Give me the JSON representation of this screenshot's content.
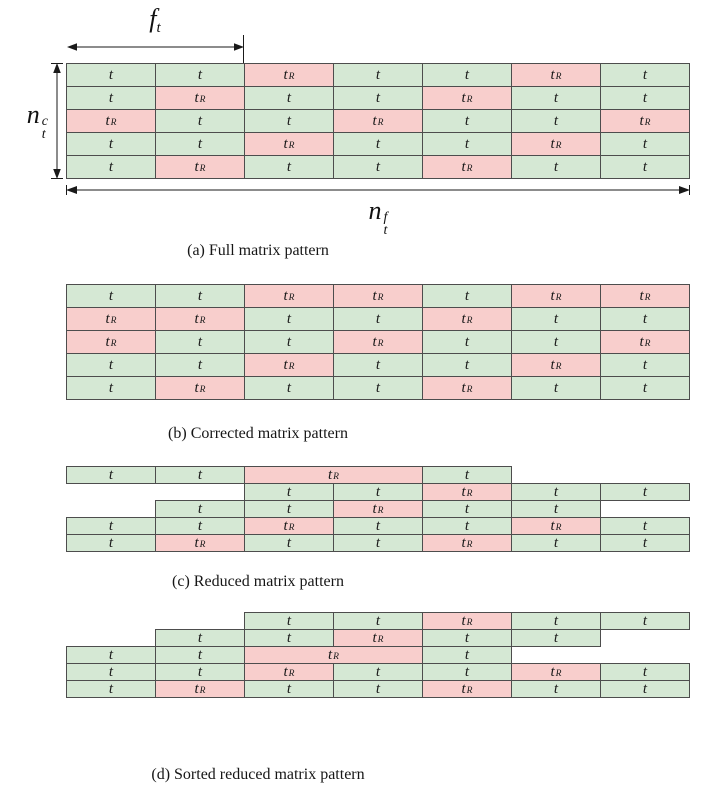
{
  "colors": {
    "cell_green": "#d5e8d4",
    "cell_pink": "#f8cecc",
    "cell_border": "#4d4d4d",
    "ink": "#1a1a1a"
  },
  "annotations": {
    "f": {
      "base": "f",
      "sub": "t"
    },
    "nc": {
      "base": "n",
      "sup": "c",
      "sub": "t"
    },
    "nf": {
      "base": "n",
      "sup": "f",
      "sub": "t"
    }
  },
  "cell_labels": {
    "normal": {
      "base": "t",
      "sub": ""
    },
    "redundant": {
      "base": "t",
      "sub": "R"
    }
  },
  "figures": [
    {
      "key": "a",
      "caption": "(a) Full matrix pattern",
      "grid_cols": 7,
      "rows": [
        {
          "start": 1,
          "cells": [
            "g",
            "g",
            "p",
            "g",
            "g",
            "p",
            "g"
          ]
        },
        {
          "start": 1,
          "cells": [
            "g",
            "p",
            "g",
            "g",
            "p",
            "g",
            "g"
          ]
        },
        {
          "start": 1,
          "cells": [
            "p",
            "g",
            "g",
            "p",
            "g",
            "g",
            "p"
          ]
        },
        {
          "start": 1,
          "cells": [
            "g",
            "g",
            "p",
            "g",
            "g",
            "p",
            "g"
          ]
        },
        {
          "start": 1,
          "cells": [
            "g",
            "p",
            "g",
            "g",
            "p",
            "g",
            "g"
          ]
        }
      ]
    },
    {
      "key": "b",
      "caption": "(b) Corrected matrix pattern",
      "grid_cols": 7,
      "rows": [
        {
          "start": 1,
          "cells": [
            "g",
            "g",
            "p",
            "p",
            "g",
            "p",
            "p"
          ]
        },
        {
          "start": 1,
          "cells": [
            "p",
            "p",
            "g",
            "g",
            "p",
            "g",
            "g"
          ]
        },
        {
          "start": 1,
          "cells": [
            "p",
            "g",
            "g",
            "p",
            "g",
            "g",
            "p"
          ]
        },
        {
          "start": 1,
          "cells": [
            "g",
            "g",
            "p",
            "g",
            "g",
            "p",
            "g"
          ]
        },
        {
          "start": 1,
          "cells": [
            "g",
            "p",
            "g",
            "g",
            "p",
            "g",
            "g"
          ]
        }
      ]
    },
    {
      "key": "c",
      "caption": "(c) Reduced matrix pattern",
      "grid_cols": 7,
      "rows": [
        {
          "start": 1,
          "cells": [
            "g",
            "g",
            "p2",
            "g"
          ]
        },
        {
          "start": 3,
          "cells": [
            "g",
            "g",
            "p",
            "g",
            "g"
          ]
        },
        {
          "start": 2,
          "cells": [
            "g",
            "g",
            "p",
            "g",
            "g"
          ]
        },
        {
          "start": 1,
          "cells": [
            "g",
            "g",
            "p",
            "g",
            "g",
            "p",
            "g"
          ]
        },
        {
          "start": 1,
          "cells": [
            "g",
            "p",
            "g",
            "g",
            "p",
            "g",
            "g"
          ]
        }
      ]
    },
    {
      "key": "d",
      "caption": "(d) Sorted reduced matrix pattern",
      "grid_cols": 7,
      "rows": [
        {
          "start": 3,
          "cells": [
            "g",
            "g",
            "p",
            "g",
            "g"
          ]
        },
        {
          "start": 2,
          "cells": [
            "g",
            "g",
            "p",
            "g",
            "g"
          ]
        },
        {
          "start": 1,
          "cells": [
            "g",
            "g",
            "p2",
            "g"
          ]
        },
        {
          "start": 1,
          "cells": [
            "g",
            "g",
            "p",
            "g",
            "g",
            "p",
            "g"
          ]
        },
        {
          "start": 1,
          "cells": [
            "g",
            "p",
            "g",
            "g",
            "p",
            "g",
            "g"
          ]
        }
      ]
    }
  ]
}
